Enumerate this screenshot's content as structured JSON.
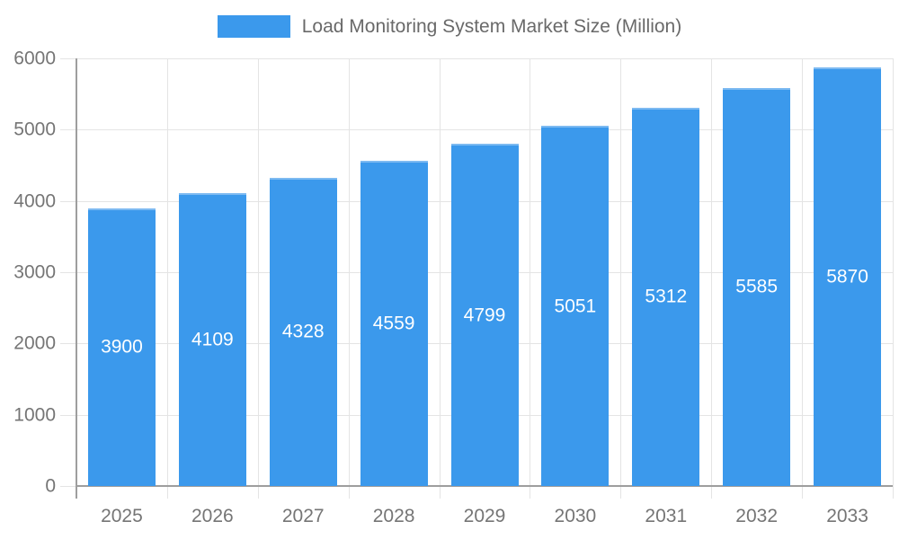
{
  "chart_data": {
    "type": "bar",
    "title": "",
    "legend_label": "Load Monitoring System Market Size (Million)",
    "legend_position": "top",
    "categories": [
      "2025",
      "2026",
      "2027",
      "2028",
      "2029",
      "2030",
      "2031",
      "2032",
      "2033"
    ],
    "values": [
      3900,
      4109,
      4328,
      4559,
      4799,
      5051,
      5312,
      5585,
      5870
    ],
    "xlabel": "",
    "ylabel": "",
    "ylim": [
      0,
      6000
    ],
    "yticks": [
      0,
      1000,
      2000,
      3000,
      4000,
      5000,
      6000
    ],
    "grid": true,
    "value_labels_inside_bars": true,
    "colors": {
      "bar_fill": "#3B99EC",
      "bar_top_border": "#7DBAF1",
      "value_label": "#FFFFFF",
      "axis_line": "#9E9E9E",
      "gridline": "#E4E4E4",
      "tick_label": "#757575",
      "legend_text": "#696969"
    }
  }
}
